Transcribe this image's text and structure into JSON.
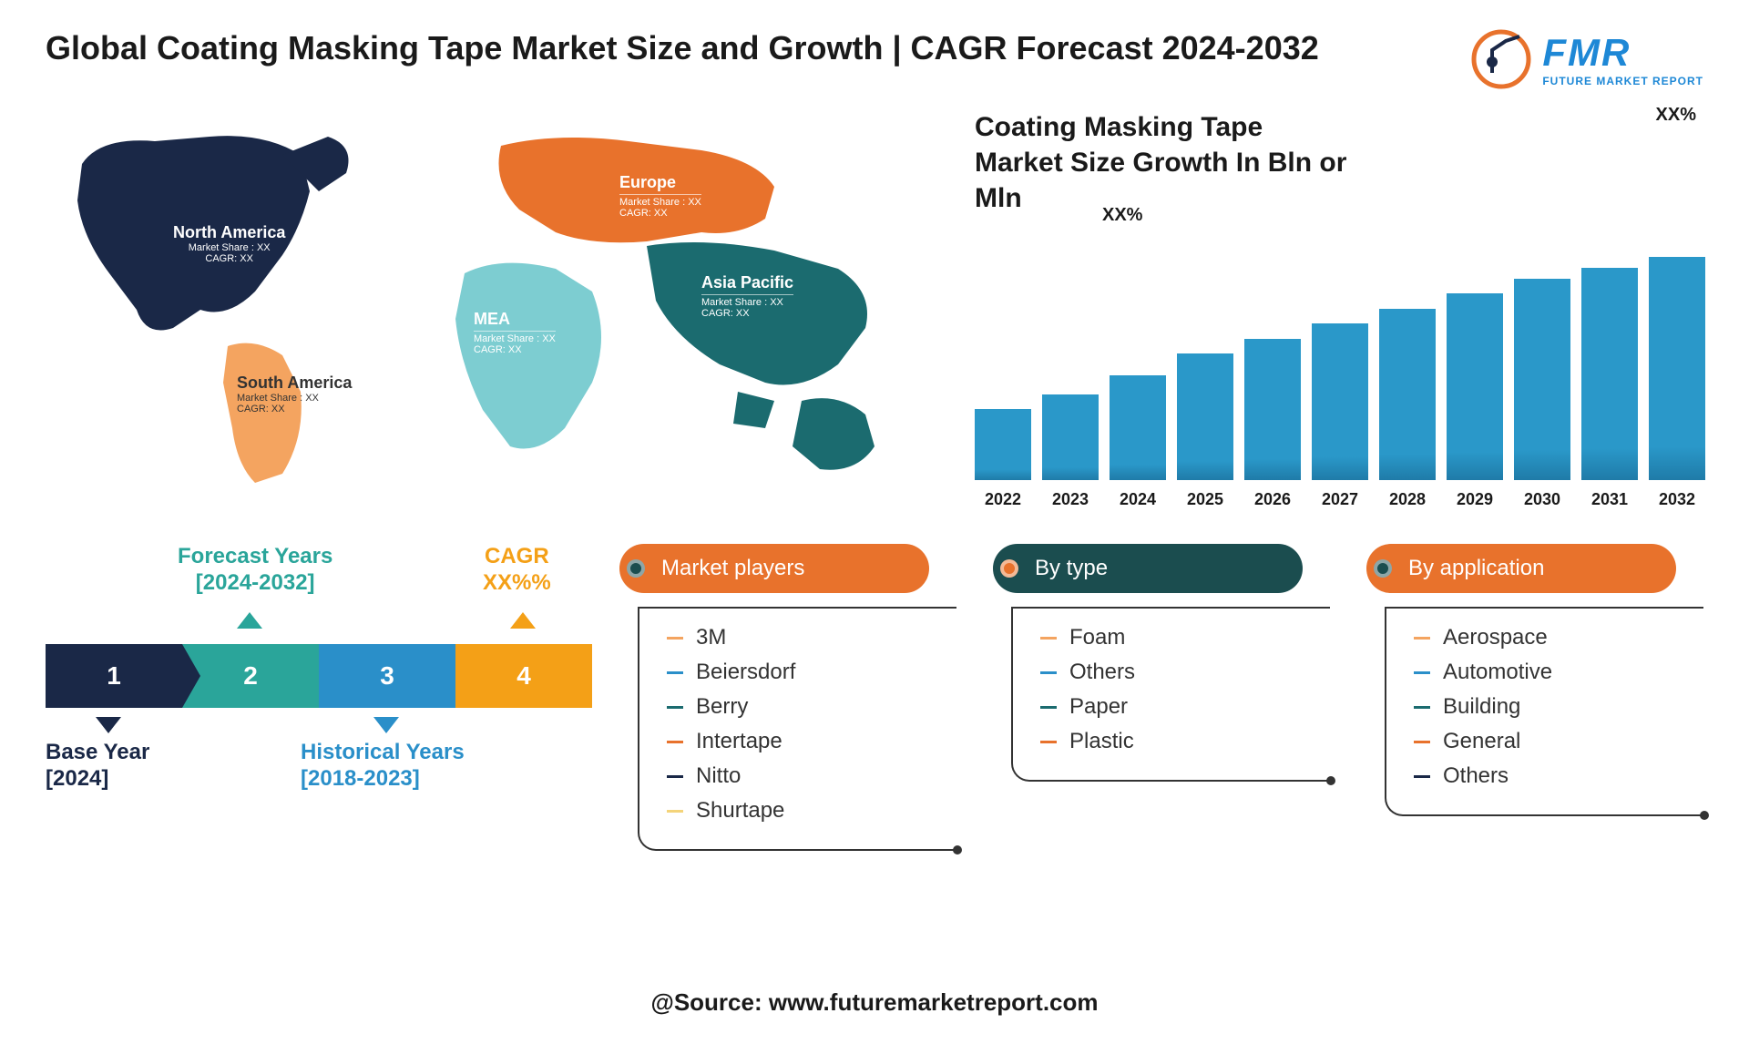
{
  "title": "Global Coating Masking Tape Market Size and Growth | CAGR Forecast 2024-2032",
  "logo": {
    "fmr": "FMR",
    "sub": "FUTURE MARKET REPORT"
  },
  "map": {
    "regions": [
      {
        "name": "North America",
        "share": "Market Share : XX",
        "cagr": "CAGR: XX",
        "color": "#1a2847"
      },
      {
        "name": "South America",
        "share": "Market Share : XX",
        "cagr": "CAGR: XX",
        "color": "#f4a460"
      },
      {
        "name": "Europe",
        "share": "Market Share : XX",
        "cagr": "CAGR: XX",
        "color": "#e8722c"
      },
      {
        "name": "MEA",
        "share": "Market Share : XX",
        "cagr": "CAGR: XX",
        "color": "#7dcdd1"
      },
      {
        "name": "Asia Pacific",
        "share": "Market Share : XX",
        "cagr": "CAGR: XX",
        "color": "#1b6b6f"
      }
    ]
  },
  "chart": {
    "title": "Coating Masking Tape Market Size Growth In Bln or Mln",
    "type": "bar",
    "years": [
      "2022",
      "2023",
      "2024",
      "2025",
      "2026",
      "2027",
      "2028",
      "2029",
      "2030",
      "2031",
      "2032"
    ],
    "values": [
      95,
      115,
      140,
      170,
      190,
      210,
      230,
      250,
      270,
      285,
      300
    ],
    "max": 330,
    "bar_color": "#2a98c9",
    "bar_dark": "#1f7ba8",
    "annot_2024": "XX%",
    "annot_2032": "XX%"
  },
  "timeline": {
    "forecast": {
      "label": "Forecast Years",
      "range": "[2024-2032]",
      "color": "#2aa59a"
    },
    "cagr": {
      "label": "CAGR",
      "value": "XX%%",
      "color": "#f4a017"
    },
    "base": {
      "label": "Base Year",
      "range": "[2024]",
      "color": "#1a2847"
    },
    "historical": {
      "label": "Historical Years",
      "range": "[2018-2023]",
      "color": "#2a8fc9"
    },
    "segments": [
      {
        "num": "1",
        "color": "#1a2847"
      },
      {
        "num": "2",
        "color": "#2aa59a"
      },
      {
        "num": "3",
        "color": "#2a8fc9"
      },
      {
        "num": "4",
        "color": "#f4a017"
      }
    ]
  },
  "columns": [
    {
      "heading": "Market players",
      "pill_color": "#e8722c",
      "dot_color": "#1b4d4f",
      "items": [
        {
          "label": "3M",
          "tick": "#f4a460"
        },
        {
          "label": "Beiersdorf",
          "tick": "#2a8fc9"
        },
        {
          "label": "Berry",
          "tick": "#1b6b6f"
        },
        {
          "label": "Intertape",
          "tick": "#e8722c"
        },
        {
          "label": "Nitto",
          "tick": "#1a2847"
        },
        {
          "label": "Shurtape",
          "tick": "#f4d47a"
        }
      ]
    },
    {
      "heading": "By type",
      "pill_color": "#1b4d4f",
      "dot_color": "#e8722c",
      "items": [
        {
          "label": "Foam",
          "tick": "#f4a460"
        },
        {
          "label": "Others",
          "tick": "#2a8fc9"
        },
        {
          "label": "Paper",
          "tick": "#1b6b6f"
        },
        {
          "label": "Plastic",
          "tick": "#e8722c"
        }
      ]
    },
    {
      "heading": "By application",
      "pill_color": "#e8722c",
      "dot_color": "#1b4d4f",
      "items": [
        {
          "label": "Aerospace",
          "tick": "#f4a460"
        },
        {
          "label": "Automotive",
          "tick": "#2a8fc9"
        },
        {
          "label": "Building",
          "tick": "#1b6b6f"
        },
        {
          "label": "General",
          "tick": "#e8722c"
        },
        {
          "label": "Others",
          "tick": "#1a2847"
        }
      ]
    }
  ],
  "source": "@Source: www.futuremarketreport.com"
}
